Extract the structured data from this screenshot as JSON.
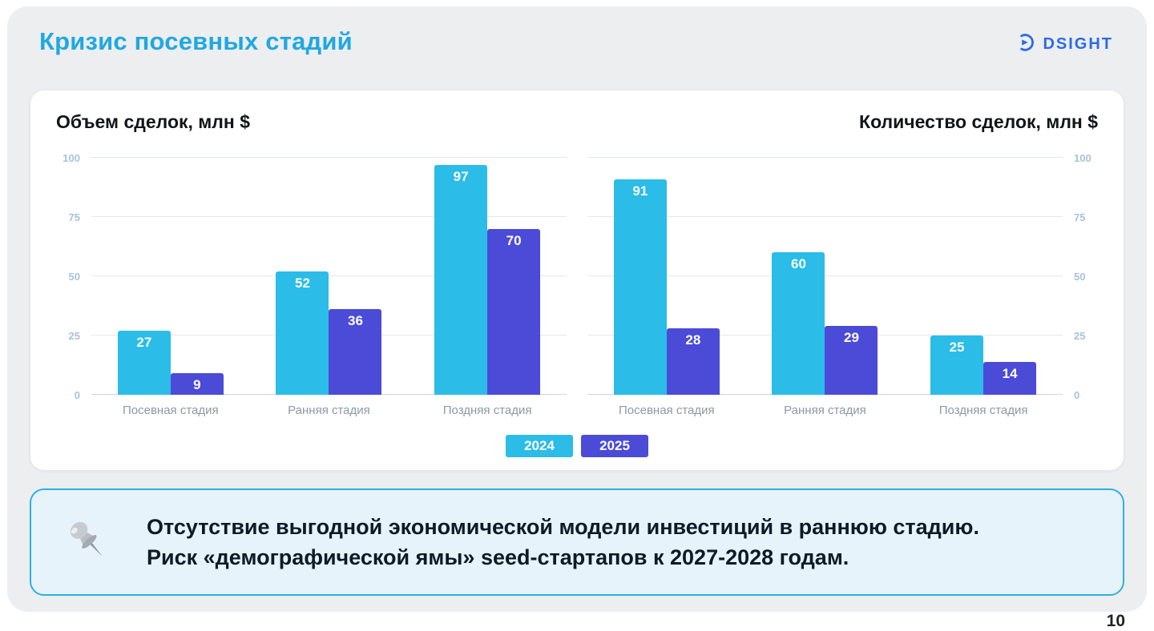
{
  "page": {
    "title": "Кризис посевных стадий",
    "page_number": "10"
  },
  "logo": {
    "text": "DSIGHT"
  },
  "colors": {
    "title_accent": "#21A8E0",
    "logo_blue": "#2D6BE4",
    "bar_2024": "#2BBCE8",
    "bar_2025": "#4B4BD8",
    "callout_border": "#2FAFE4",
    "callout_bg": "#E7F3FB"
  },
  "legend": {
    "items": [
      {
        "label": "2024",
        "color": "#2BBCE8"
      },
      {
        "label": "2025",
        "color": "#4B4BD8"
      }
    ]
  },
  "callout": {
    "lines": [
      "Отсутствие выгодной экономической модели инвестиций в раннюю стадию.",
      "Риск «демографической ямы» seed-стартапов к 2027-2028 годам."
    ]
  },
  "chart_data": [
    {
      "type": "bar",
      "title": "Объем сделок, млн $",
      "categories": [
        "Посевная стадия",
        "Ранняя стадия",
        "Поздняя стадия"
      ],
      "series": [
        {
          "name": "2024",
          "color": "#2BBCE8",
          "values": [
            27,
            52,
            97
          ]
        },
        {
          "name": "2025",
          "color": "#4B4BD8",
          "values": [
            9,
            36,
            70
          ]
        }
      ],
      "ylim": [
        0,
        100
      ],
      "yticks": [
        0,
        25,
        50,
        75,
        100
      ],
      "y_axis_side": "left",
      "grid": true,
      "legend_position": "bottom-center"
    },
    {
      "type": "bar",
      "title": "Количество сделок, млн $",
      "categories": [
        "Посевная стадия",
        "Ранняя стадия",
        "Поздняя стадия"
      ],
      "series": [
        {
          "name": "2024",
          "color": "#2BBCE8",
          "values": [
            91,
            60,
            25
          ]
        },
        {
          "name": "2025",
          "color": "#4B4BD8",
          "values": [
            28,
            29,
            14
          ]
        }
      ],
      "ylim": [
        0,
        100
      ],
      "yticks": [
        0,
        25,
        50,
        75,
        100
      ],
      "y_axis_side": "right",
      "grid": true,
      "legend_position": "bottom-center"
    }
  ]
}
